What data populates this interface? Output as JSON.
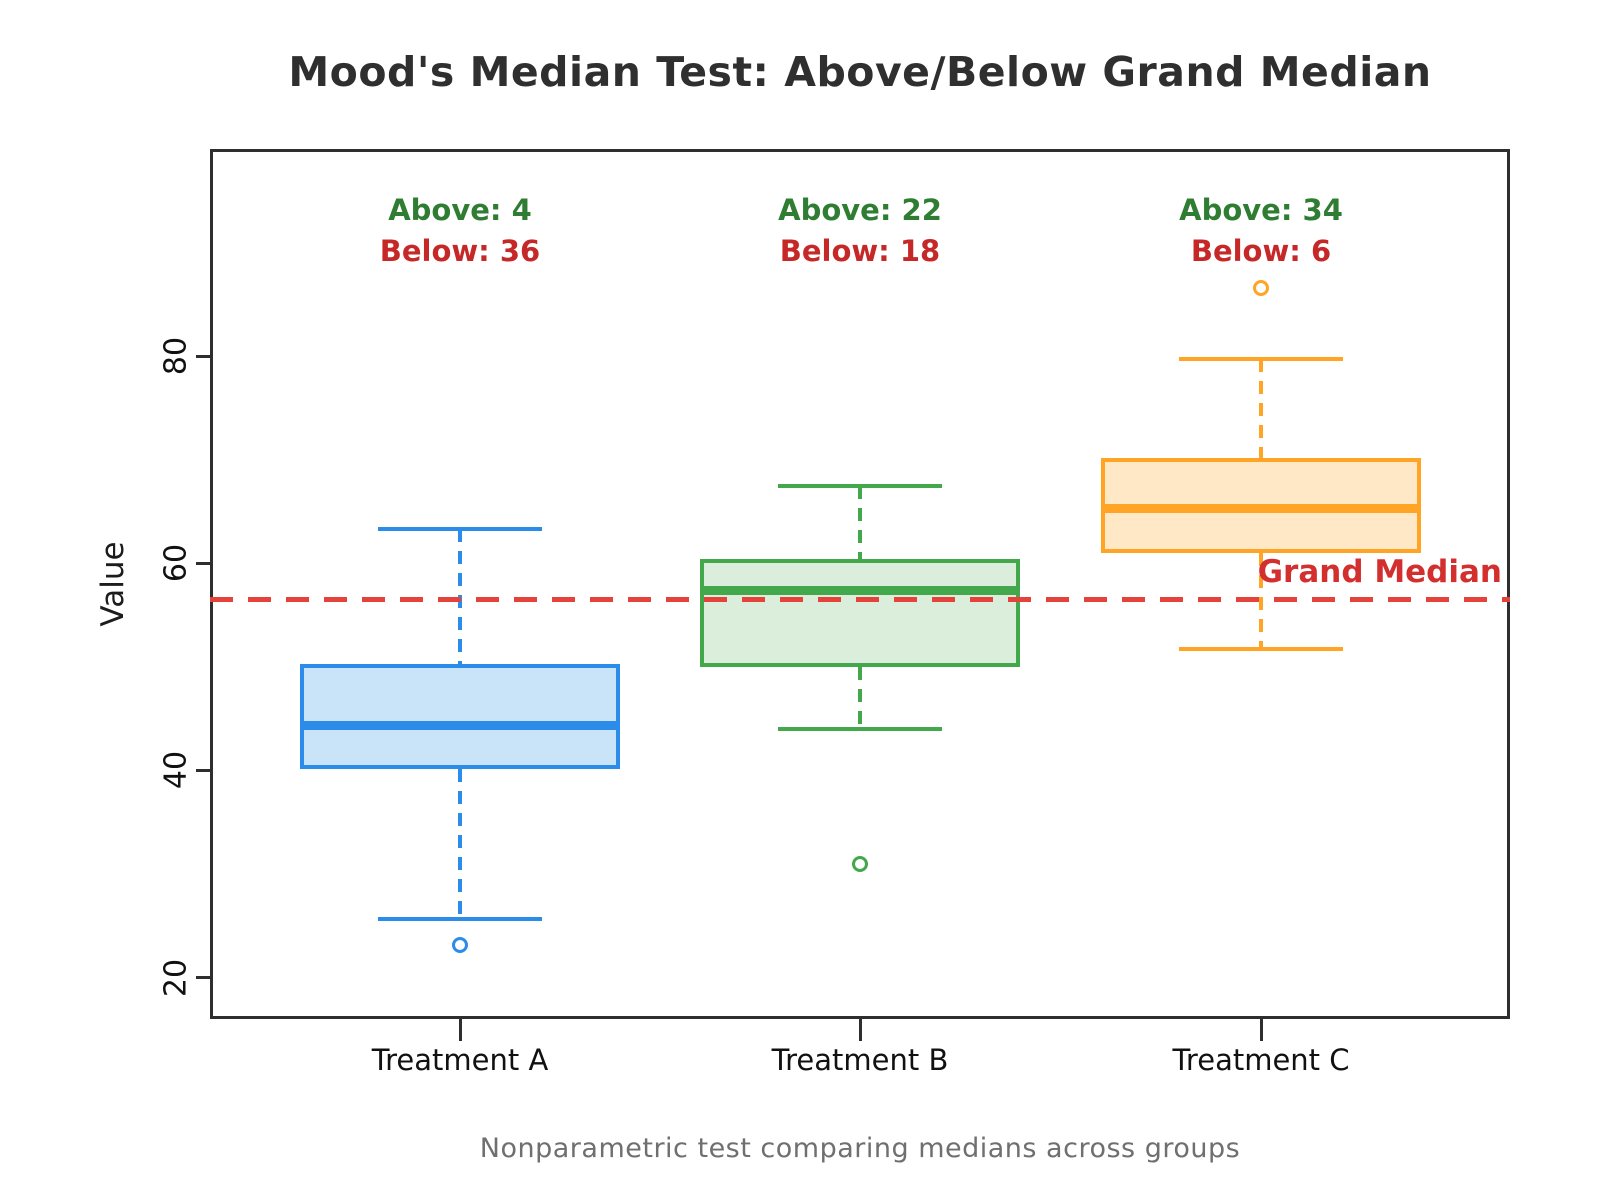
{
  "chart_data": {
    "type": "boxplot",
    "title": "Mood's Median Test: Above/Below Grand Median",
    "caption": "Nonparametric test comparing medians across groups",
    "ylabel": "Value",
    "xlabel": "",
    "ylim": [
      16,
      100
    ],
    "yticks": [
      20,
      40,
      60,
      80
    ],
    "grid": false,
    "legend": "none",
    "frame_color": "#2e2e2e",
    "grand_median": {
      "value": 56.5,
      "label": "Grand Median",
      "line_color": "#E5423C",
      "label_color": "#D32F2F"
    },
    "annotation_colors": {
      "above": "#2E7D32",
      "below": "#C62828"
    },
    "categories": [
      "Treatment A",
      "Treatment B",
      "Treatment C"
    ],
    "series": [
      {
        "name": "Treatment A",
        "stroke": "#2B8DE9",
        "fill": "#C9E3F8",
        "whisker_low": 25.7,
        "q1": 40.1,
        "median": 44.3,
        "q3": 50.3,
        "whisker_high": 63.3,
        "outliers": [
          23.1
        ],
        "above_count": 4,
        "below_count": 36,
        "above_label": "Above: 4",
        "below_label": "Below: 36"
      },
      {
        "name": "Treatment B",
        "stroke": "#43A74C",
        "fill": "#DAEEDB",
        "whisker_low": 44.0,
        "q1": 50.0,
        "median": 57.4,
        "q3": 60.4,
        "whisker_high": 67.5,
        "outliers": [
          31.0
        ],
        "above_count": 22,
        "below_count": 18,
        "above_label": "Above: 22",
        "below_label": "Below: 18"
      },
      {
        "name": "Treatment C",
        "stroke": "#FFA424",
        "fill": "#FFE8C6",
        "whisker_low": 51.7,
        "q1": 61.0,
        "median": 65.3,
        "q3": 70.2,
        "whisker_high": 79.7,
        "outliers": [
          86.6
        ],
        "above_count": 34,
        "below_count": 6,
        "above_label": "Above: 34",
        "below_label": "Below: 6"
      }
    ]
  }
}
